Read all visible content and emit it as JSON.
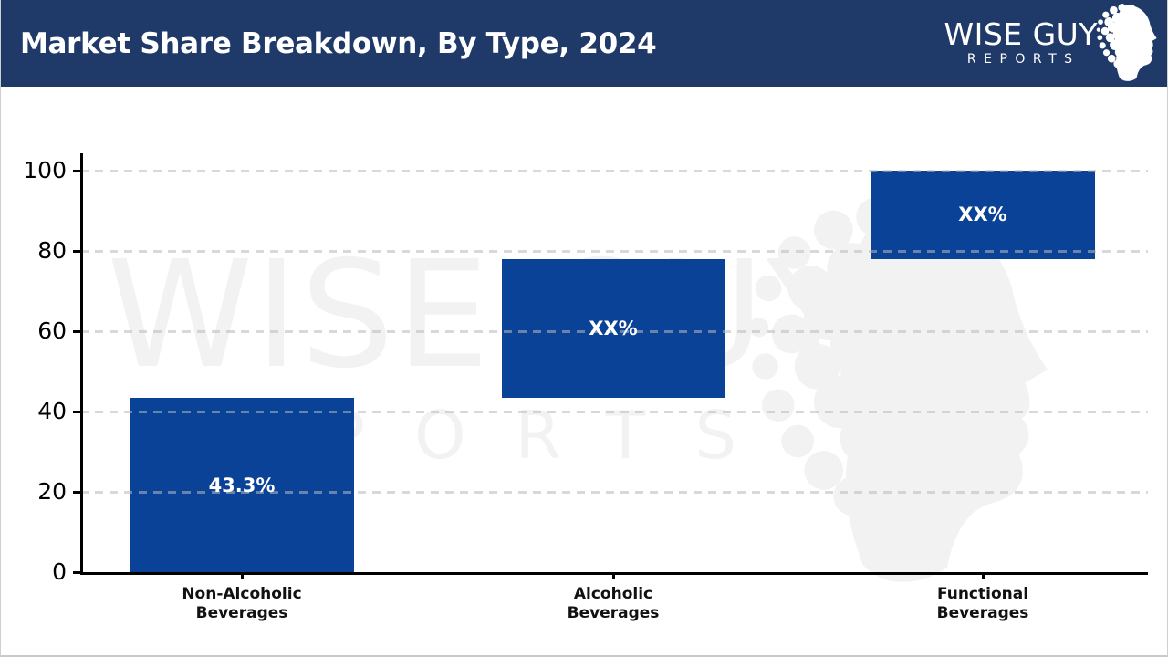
{
  "header": {
    "title": "Market Share Breakdown, By Type, 2024",
    "logo": {
      "line1": "WISE GUY",
      "line2": "REPORTS"
    }
  },
  "watermark": {
    "line1": "WISE GUY",
    "line2": "REPORTS"
  },
  "chart_data": {
    "type": "bar",
    "subtype": "floating-segment-waterfall",
    "title": "Market Share Breakdown, By Type, 2024",
    "categories": [
      {
        "line1": "Non-Alcoholic",
        "line2": "Beverages"
      },
      {
        "line1": "Alcoholic",
        "line2": "Beverages"
      },
      {
        "line1": "Functional",
        "line2": "Beverages"
      }
    ],
    "series": [
      {
        "name": "Market Share (%)",
        "segments": [
          {
            "category": "Non-Alcoholic Beverages",
            "start": 0,
            "end": 43.3,
            "label": "43.3%"
          },
          {
            "category": "Alcoholic Beverages",
            "start": 43.3,
            "end": 78,
            "label": "XX%"
          },
          {
            "category": "Functional Beverages",
            "start": 78,
            "end": 100,
            "label": "XX%"
          }
        ]
      }
    ],
    "xlabel": "",
    "ylabel": "",
    "ylim": [
      0,
      100
    ],
    "yticks": [
      0,
      20,
      40,
      60,
      80,
      100
    ],
    "grid": "horizontal-dashed",
    "legend": "none",
    "colors": {
      "bar": "#0a4297",
      "bar_label": "#ffffff",
      "header_bg": "#1f3a68",
      "axis": "#000000",
      "grid": "#dcdcdc",
      "watermark": "#f2f2f2"
    }
  }
}
